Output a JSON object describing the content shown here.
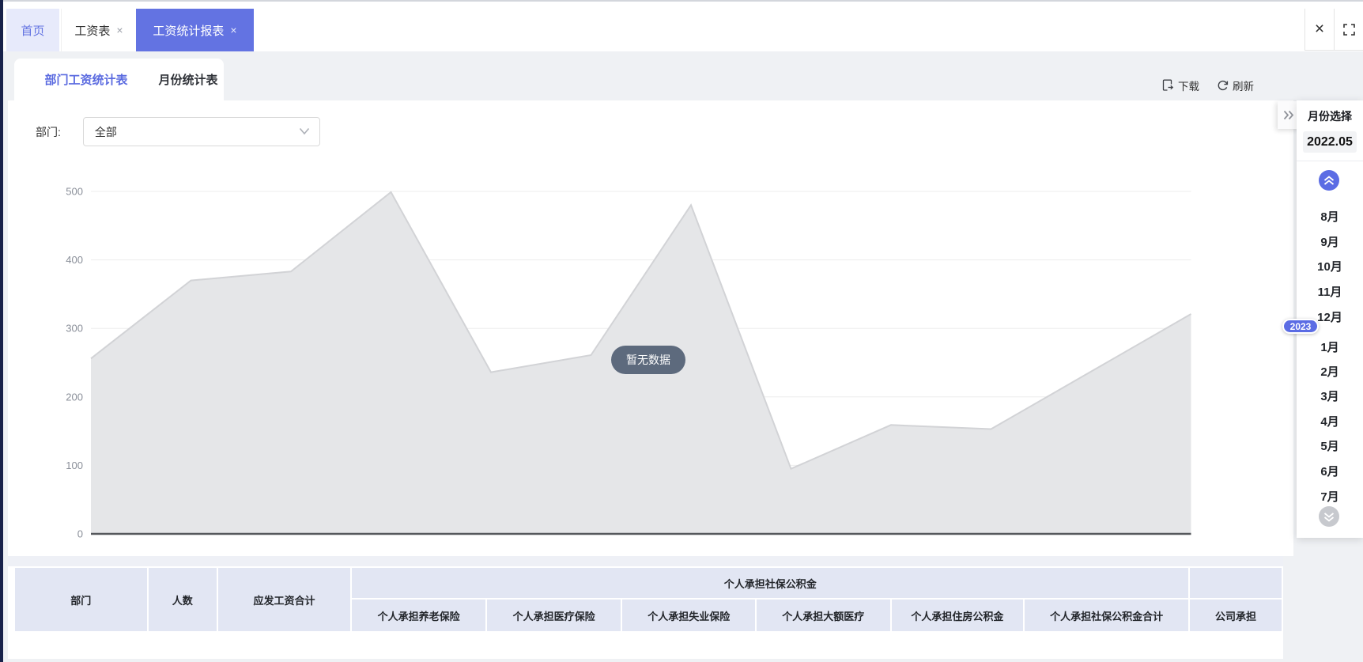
{
  "colors": {
    "accent": "#6373e2",
    "accent_light_bg": "#e7eafb",
    "subtab_active": "#5b6be0",
    "panel_button_blue": "#5b6ce4",
    "panel_button_gray": "#c7c9ce",
    "chart_fill": "#e5e6e8",
    "chart_stroke": "#d2d3d6",
    "axis_line": "#55585c",
    "grid_line": "#ededed",
    "tick_text": "#8a8f99",
    "empty_pill_bg": "#5d6a7d",
    "table_header_bg": "#e2e6f3",
    "page_bg": "#eff1f4"
  },
  "topbar": {
    "tabs": [
      {
        "label": "首页",
        "closable": false,
        "active": false
      },
      {
        "label": "工资表",
        "closable": true,
        "active": false
      },
      {
        "label": "工资统计报表",
        "closable": true,
        "active": true
      }
    ],
    "close_glyph": "×"
  },
  "subtabs": {
    "items": [
      {
        "label": "部门工资统计表",
        "active": true
      },
      {
        "label": "月份统计表",
        "active": false
      }
    ]
  },
  "toolbar": {
    "download_label": "下载",
    "refresh_label": "刷新"
  },
  "filter": {
    "dept_label": "部门:",
    "dept_value": "全部"
  },
  "chart_data": {
    "type": "area",
    "title": "",
    "xlabel": "",
    "ylabel": "",
    "x_tick_labels_visible": false,
    "ylim": [
      0,
      500
    ],
    "yticks": [
      0,
      100,
      200,
      300,
      400,
      500
    ],
    "values": [
      256,
      370,
      383,
      499,
      236,
      261,
      480,
      95,
      159,
      153,
      237,
      321
    ],
    "grid": true,
    "legend": "none",
    "empty_text": "暂无数据"
  },
  "month_panel": {
    "title": "月份选择",
    "period": "2022.05",
    "year_badge": "2023",
    "months_2022": [
      "8月",
      "9月",
      "10月",
      "11月",
      "12月"
    ],
    "months_2023": [
      "1月",
      "2月",
      "3月",
      "4月",
      "5月",
      "6月",
      "7月"
    ]
  },
  "table": {
    "columns_fixed": [
      "部门",
      "人数",
      "应发工资合计"
    ],
    "group_header": "个人承担社保公积金",
    "group_columns": [
      "个人承担养老保险",
      "个人承担医疗保险",
      "个人承担失业保险",
      "个人承担大额医疗",
      "个人承担住房公积金",
      "个人承担社保公积金合计"
    ],
    "next_group_partial": "公司承担",
    "rows": []
  }
}
